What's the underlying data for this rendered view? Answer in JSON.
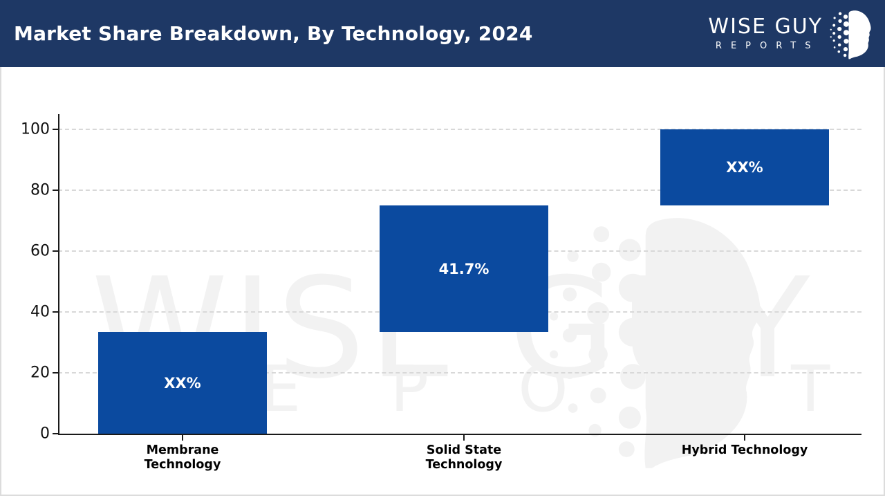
{
  "header": {
    "title": "Market Share Breakdown, By Technology, 2024",
    "logo": {
      "line1": "WISE GUY",
      "line2": "REPORTS"
    }
  },
  "watermark": {
    "line1": "WISE GUY",
    "line2": "R E P O R T S"
  },
  "colors": {
    "header_bg": "#1e3865",
    "bar": "#0b4a9f",
    "bar_label": "#ffffff",
    "axis": "#1a1a1a",
    "gridline": "#d8d8d8",
    "watermark": "#f2f2f2",
    "frame_border": "#dcdcdc"
  },
  "chart_data": {
    "type": "bar",
    "subtype": "waterfall-stacked",
    "title": "Market Share Breakdown, By Technology, 2024",
    "categories": [
      "Membrane Technology",
      "Solid State Technology",
      "Hybrid Technology"
    ],
    "category_lines": [
      [
        "Membrane",
        "Technology"
      ],
      [
        "Solid State",
        "Technology"
      ],
      [
        "Hybrid Technology"
      ]
    ],
    "segments": [
      {
        "start": 0,
        "end": 33.3,
        "value": 33.3,
        "label": "XX%"
      },
      {
        "start": 33.3,
        "end": 75,
        "value": 41.7,
        "label": "41.7%"
      },
      {
        "start": 75,
        "end": 100,
        "value": 25,
        "label": "XX%"
      }
    ],
    "yticks": [
      0,
      20,
      40,
      60,
      80,
      100
    ],
    "ylim": [
      0,
      100
    ],
    "xlabel": "",
    "ylabel": "",
    "grid": "horizontal-dashed",
    "legend": "none"
  }
}
